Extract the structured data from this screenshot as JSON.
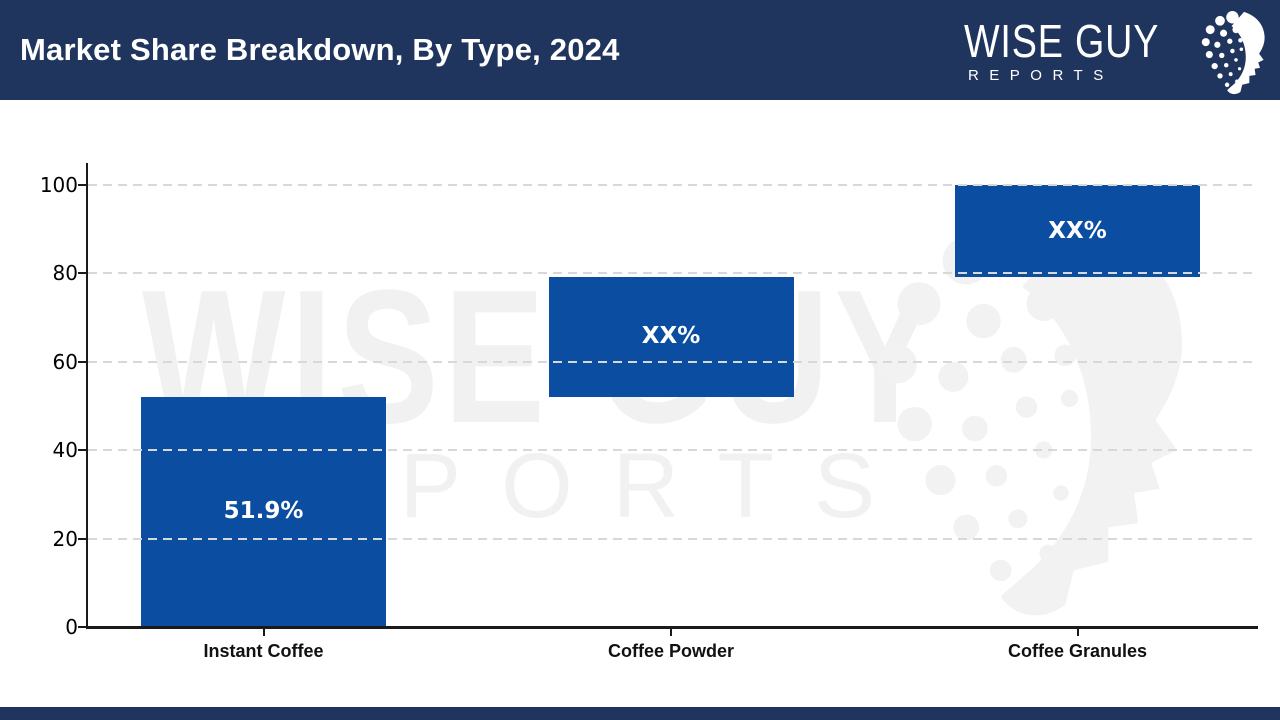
{
  "header": {
    "title": "Market Share Breakdown, By Type, 2024",
    "logo_line1": "WISE GUY",
    "logo_line2": "REPORTS",
    "logo_icon": "head-profile-dots-icon"
  },
  "watermark": {
    "line1": "WISE GUY",
    "line2": "REPORTS",
    "icon": "head-profile-dots-icon"
  },
  "colors": {
    "header_bg": "#20355e",
    "footer_bg": "#20355e",
    "bar": "#0b4da1",
    "bar_label": "#ffffff",
    "gridline": "#d8d8d8",
    "axis": "#1a1a1a",
    "watermark": "#f1f1f1"
  },
  "chart_data": {
    "type": "bar",
    "subtype": "floating-waterfall",
    "title": "Market Share Breakdown, By Type, 2024",
    "xlabel": "",
    "ylabel": "",
    "categories": [
      "Instant Coffee",
      "Coffee Powder",
      "Coffee Granules"
    ],
    "segments": [
      {
        "category": "Instant Coffee",
        "start": 0,
        "end": 51.9,
        "label": "51.9%"
      },
      {
        "category": "Coffee Powder",
        "start": 51.9,
        "end": 79.0,
        "label": "XX%"
      },
      {
        "category": "Coffee Granules",
        "start": 79.0,
        "end": 100.0,
        "label": "XX%"
      }
    ],
    "yticks": [
      0,
      20,
      40,
      60,
      80,
      100
    ],
    "ylim": [
      0,
      105
    ],
    "grid": "horizontal-dashed-over-bars",
    "legend": "none"
  }
}
